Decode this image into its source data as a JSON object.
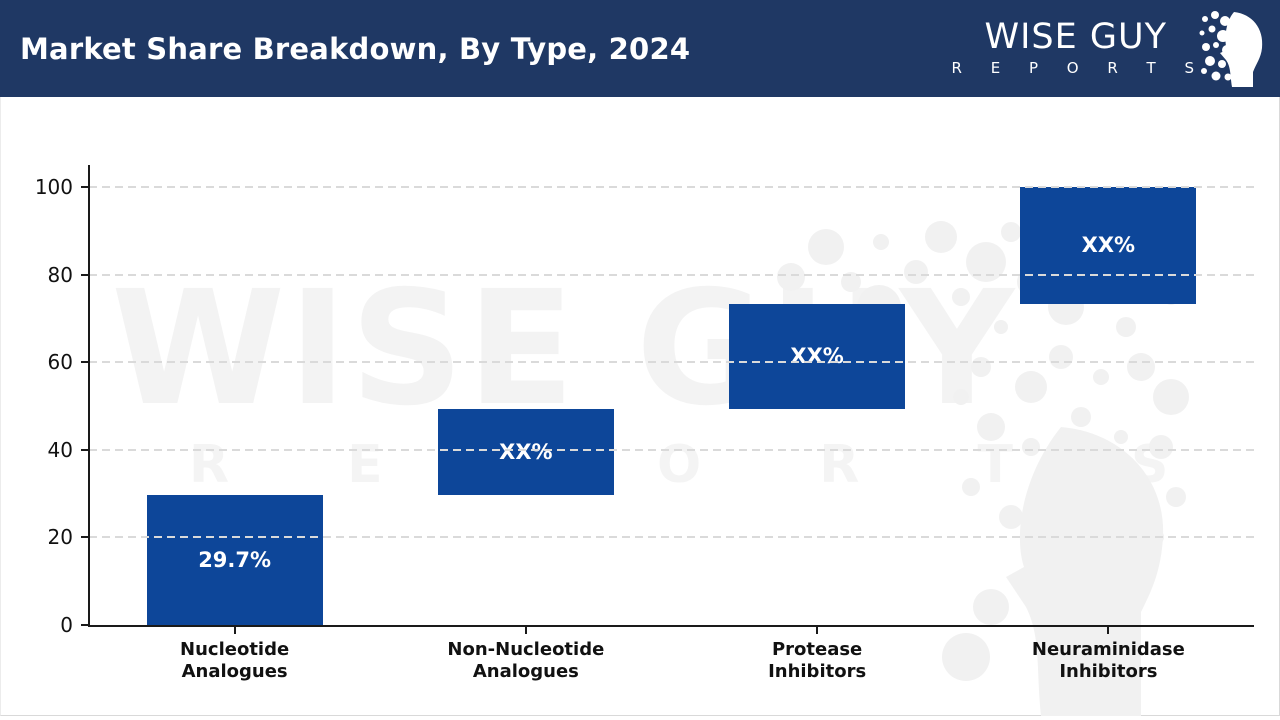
{
  "header": {
    "title": "Market Share Breakdown, By Type, 2024",
    "logo": {
      "name_top": "WISE GUY",
      "name_bottom": "R E P O R T S"
    }
  },
  "watermark": {
    "text_top": "WISE GUY",
    "text_bottom": "R E P O R T S"
  },
  "chart_data": {
    "type": "bar",
    "variant": "waterfall",
    "title": "Market Share Breakdown, By Type, 2024",
    "categories": [
      [
        "Nucleotide",
        "Analogues"
      ],
      [
        "Non-Nucleotide",
        "Analogues"
      ],
      [
        "Protease",
        "Inhibitors"
      ],
      [
        "Neuraminidase",
        "Inhibitors"
      ]
    ],
    "segments": [
      {
        "category": "Nucleotide Analogues",
        "start": 0,
        "end": 29.7,
        "label": "29.7%"
      },
      {
        "category": "Non-Nucleotide Analogues",
        "start": 29.7,
        "end": 49.3,
        "label": "XX%"
      },
      {
        "category": "Protease Inhibitors",
        "start": 49.3,
        "end": 73.3,
        "label": "XX%"
      },
      {
        "category": "Neuraminidase Inhibitors",
        "start": 73.3,
        "end": 100,
        "label": "XX%"
      }
    ],
    "ylim": [
      0,
      100
    ],
    "yticks": [
      0,
      20,
      40,
      60,
      80,
      100
    ],
    "xlabel": "",
    "ylabel": "",
    "grid": {
      "axis": "y",
      "style": "dashed",
      "color": "#dadada",
      "drawn_over_bars": true
    },
    "legend": "none",
    "colors": {
      "bar": "#0d4699",
      "bar_label": "#ffffff",
      "header_bg": "#1f3864",
      "axis": "#1a1a1a",
      "watermark": "#f3f3f3"
    }
  }
}
